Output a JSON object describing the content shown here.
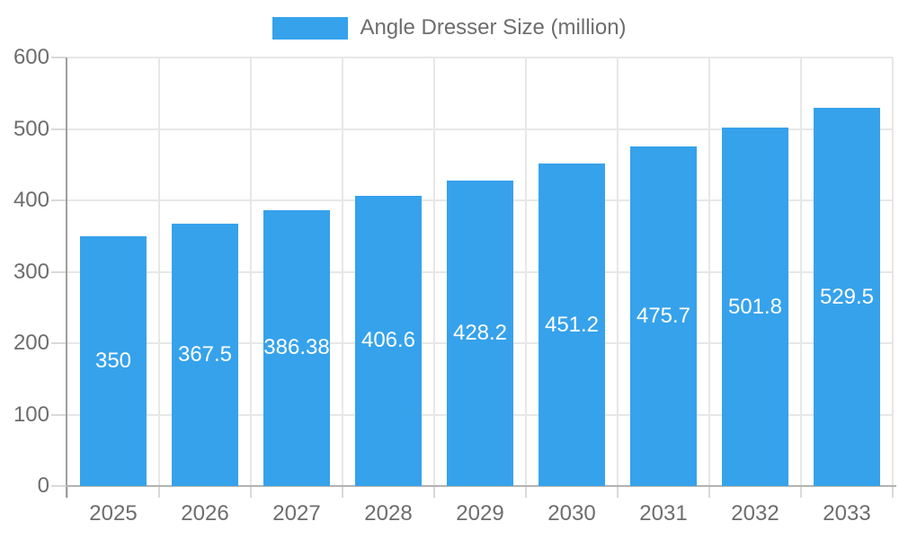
{
  "legend": {
    "label": "Angle Dresser Size (million)",
    "swatch_color": "#36A2EB"
  },
  "chart_data": {
    "type": "bar",
    "title": "",
    "categories": [
      "2025",
      "2026",
      "2027",
      "2028",
      "2029",
      "2030",
      "2031",
      "2032",
      "2033"
    ],
    "series": [
      {
        "name": "Angle Dresser Size (million)",
        "color": "#36A2EB",
        "values": [
          350,
          367.5,
          386.38,
          406.6,
          428.2,
          451.2,
          475.7,
          501.8,
          529.5
        ]
      }
    ],
    "xlabel": "",
    "ylabel": "",
    "ylim": [
      0,
      600
    ],
    "ytick_step": 100,
    "ytick_labels": [
      "0",
      "100",
      "200",
      "300",
      "400",
      "500",
      "600"
    ],
    "grid": true,
    "legend_position": "top-center",
    "value_labels": {
      "position": "center-inside",
      "color": "#ffffff"
    }
  },
  "colors": {
    "background": "#ffffff",
    "bar": "#36A2EB",
    "grid": "#e7e7e7",
    "tick": "#d9d9d9",
    "y_axis_line": "#9e9e9e",
    "x_axis_line": "#b3b3b3",
    "text": "#6d6d6d",
    "bar_label": "#ffffff"
  }
}
